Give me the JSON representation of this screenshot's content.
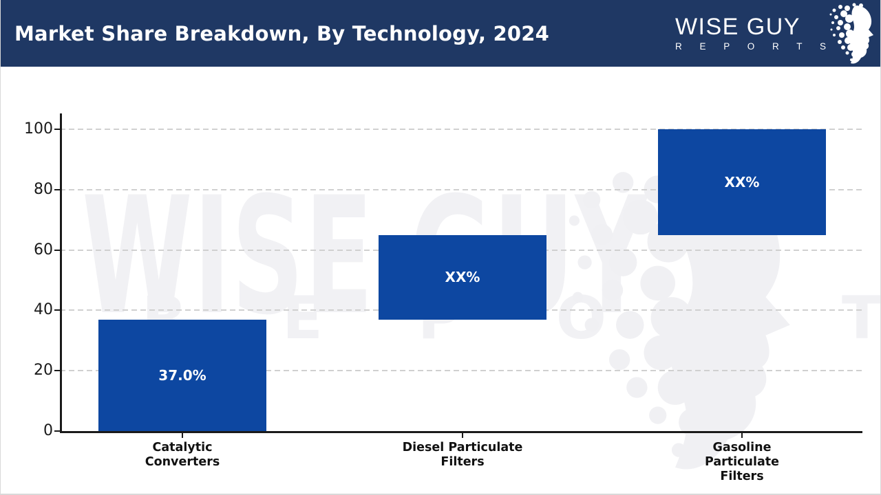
{
  "header": {
    "title": "Market Share Breakdown, By Technology, 2024",
    "brand": {
      "name": "WISE GUY",
      "sub": "R E P O R T S"
    },
    "bg_color": "#1f3864"
  },
  "watermark": {
    "line1": "WISE GUY",
    "line2": "R E P O R T S"
  },
  "chart_data": {
    "type": "bar",
    "subtype": "waterfall",
    "title": "Market Share Breakdown, By Technology, 2024",
    "categories": [
      "Catalytic\nConverters",
      "Diesel Particulate\nFilters",
      "Gasoline\nParticulate\nFilters"
    ],
    "bars": [
      {
        "category": "Catalytic\nConverters",
        "start": 0,
        "end": 37,
        "label": "37.0%"
      },
      {
        "category": "Diesel Particulate\nFilters",
        "start": 37,
        "end": 65,
        "label": "XX%"
      },
      {
        "category": "Gasoline\nParticulate\nFilters",
        "start": 65,
        "end": 100,
        "label": "XX%"
      }
    ],
    "yticks": [
      0,
      20,
      40,
      60,
      80,
      100
    ],
    "ylim": [
      0,
      100
    ],
    "xlabel": "",
    "ylabel": "",
    "grid": "horizontal-dashed",
    "bar_color": "#0d47a1",
    "value_label_color": "#ffffff",
    "axis_color": "#1a1a1a",
    "gridline_color": "#d0d0d0"
  }
}
